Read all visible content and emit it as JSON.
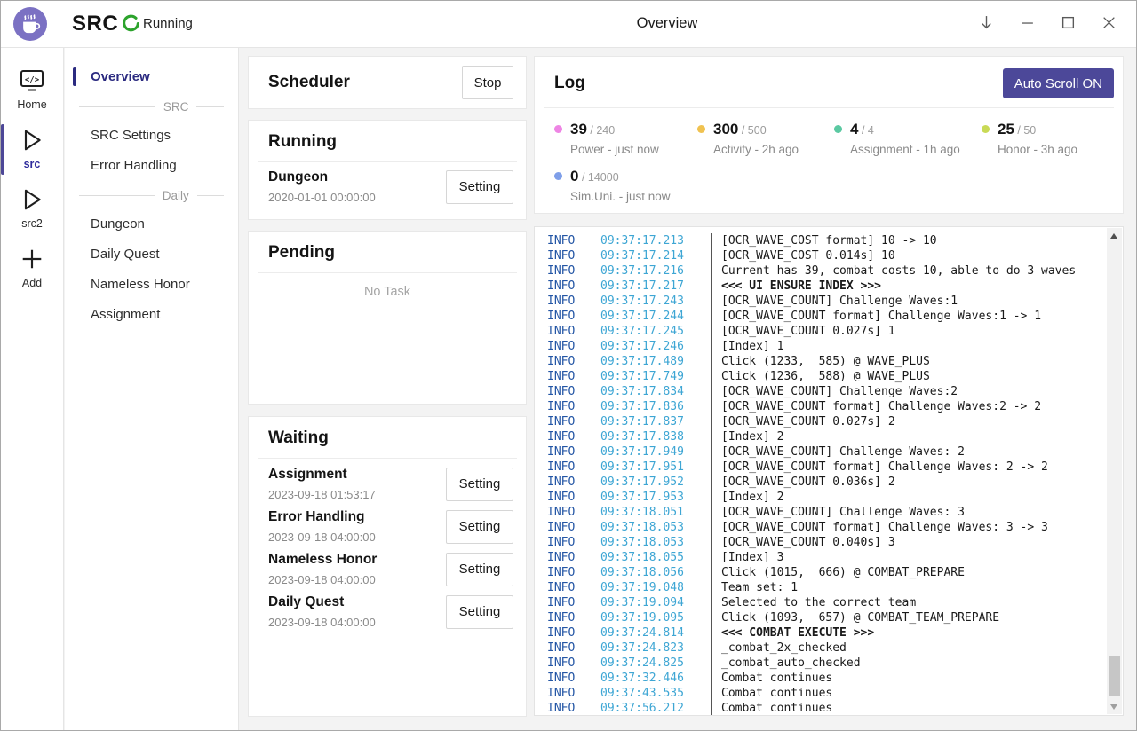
{
  "titlebar": {
    "app_name": "SRC",
    "status": "Running",
    "status_icon": "spinner-icon",
    "page_title": "Overview",
    "window_controls": [
      "arrow-down-icon",
      "minimize-icon",
      "maximize-icon",
      "close-icon"
    ],
    "logo_icon": "coffee-cup-logo"
  },
  "nav_rail": {
    "items": [
      {
        "label": "Home",
        "icon": "code-monitor-icon",
        "active": false
      },
      {
        "label": "src",
        "icon": "play-icon",
        "active": true
      },
      {
        "label": "src2",
        "icon": "play-icon",
        "active": false
      },
      {
        "label": "Add",
        "icon": "plus-icon",
        "active": false
      }
    ]
  },
  "sidebar": {
    "items": [
      {
        "type": "item",
        "label": "Overview",
        "active": true
      },
      {
        "type": "divider",
        "label": "SRC"
      },
      {
        "type": "item",
        "label": "SRC Settings",
        "active": false
      },
      {
        "type": "item",
        "label": "Error Handling",
        "active": false
      },
      {
        "type": "divider",
        "label": "Daily"
      },
      {
        "type": "item",
        "label": "Dungeon",
        "active": false
      },
      {
        "type": "item",
        "label": "Daily Quest",
        "active": false
      },
      {
        "type": "item",
        "label": "Nameless Honor",
        "active": false
      },
      {
        "type": "item",
        "label": "Assignment",
        "active": false
      }
    ]
  },
  "scheduler": {
    "title": "Scheduler",
    "stop_label": "Stop"
  },
  "running": {
    "title": "Running",
    "task": {
      "name": "Dungeon",
      "time": "2020-01-01 00:00:00",
      "setting_label": "Setting"
    }
  },
  "pending": {
    "title": "Pending",
    "empty_label": "No Task"
  },
  "waiting": {
    "title": "Waiting",
    "tasks": [
      {
        "name": "Assignment",
        "time": "2023-09-18 01:53:17",
        "setting_label": "Setting"
      },
      {
        "name": "Error Handling",
        "time": "2023-09-18 04:00:00",
        "setting_label": "Setting"
      },
      {
        "name": "Nameless Honor",
        "time": "2023-09-18 04:00:00",
        "setting_label": "Setting"
      },
      {
        "name": "Daily Quest",
        "time": "2023-09-18 04:00:00",
        "setting_label": "Setting"
      }
    ]
  },
  "log_panel": {
    "title": "Log",
    "autoscroll_label": "Auto Scroll ON",
    "autoscroll_color": "#4c4899",
    "stats": [
      {
        "value": "39",
        "total": "/ 240",
        "label": "Power - just now",
        "color": "#ee85e4"
      },
      {
        "value": "300",
        "total": "/ 500",
        "label": "Activity - 2h ago",
        "color": "#f0c250"
      },
      {
        "value": "4",
        "total": "/ 4",
        "label": "Assignment - 1h ago",
        "color": "#5bc9a2"
      },
      {
        "value": "25",
        "total": "/ 50",
        "label": "Honor - 3h ago",
        "color": "#c9da56"
      },
      {
        "value": "0",
        "total": "/ 14000",
        "label": "Sim.Uni. - just now",
        "color": "#7f9fe9"
      }
    ],
    "lines": [
      {
        "level": "INFO",
        "time": "09:37:17.213",
        "msg": "[OCR_WAVE_COST format] 10 -> 10"
      },
      {
        "level": "INFO",
        "time": "09:37:17.214",
        "msg": "[OCR_WAVE_COST 0.014s] 10"
      },
      {
        "level": "INFO",
        "time": "09:37:17.216",
        "msg": "Current has 39, combat costs 10, able to do 3 waves"
      },
      {
        "level": "INFO",
        "time": "09:37:17.217",
        "msg": "<<< UI ENSURE INDEX >>>",
        "bold": true
      },
      {
        "level": "INFO",
        "time": "09:37:17.243",
        "msg": "[OCR_WAVE_COUNT] Challenge Waves:1"
      },
      {
        "level": "INFO",
        "time": "09:37:17.244",
        "msg": "[OCR_WAVE_COUNT format] Challenge Waves:1 -> 1"
      },
      {
        "level": "INFO",
        "time": "09:37:17.245",
        "msg": "[OCR_WAVE_COUNT 0.027s] 1"
      },
      {
        "level": "INFO",
        "time": "09:37:17.246",
        "msg": "[Index] 1"
      },
      {
        "level": "INFO",
        "time": "09:37:17.489",
        "msg": "Click (1233,  585) @ WAVE_PLUS"
      },
      {
        "level": "INFO",
        "time": "09:37:17.749",
        "msg": "Click (1236,  588) @ WAVE_PLUS"
      },
      {
        "level": "INFO",
        "time": "09:37:17.834",
        "msg": "[OCR_WAVE_COUNT] Challenge Waves:2"
      },
      {
        "level": "INFO",
        "time": "09:37:17.836",
        "msg": "[OCR_WAVE_COUNT format] Challenge Waves:2 -> 2"
      },
      {
        "level": "INFO",
        "time": "09:37:17.837",
        "msg": "[OCR_WAVE_COUNT 0.027s] 2"
      },
      {
        "level": "INFO",
        "time": "09:37:17.838",
        "msg": "[Index] 2"
      },
      {
        "level": "INFO",
        "time": "09:37:17.949",
        "msg": "[OCR_WAVE_COUNT] Challenge Waves: 2"
      },
      {
        "level": "INFO",
        "time": "09:37:17.951",
        "msg": "[OCR_WAVE_COUNT format] Challenge Waves: 2 -> 2"
      },
      {
        "level": "INFO",
        "time": "09:37:17.952",
        "msg": "[OCR_WAVE_COUNT 0.036s] 2"
      },
      {
        "level": "INFO",
        "time": "09:37:17.953",
        "msg": "[Index] 2"
      },
      {
        "level": "INFO",
        "time": "09:37:18.051",
        "msg": "[OCR_WAVE_COUNT] Challenge Waves: 3"
      },
      {
        "level": "INFO",
        "time": "09:37:18.053",
        "msg": "[OCR_WAVE_COUNT format] Challenge Waves: 3 -> 3"
      },
      {
        "level": "INFO",
        "time": "09:37:18.053",
        "msg": "[OCR_WAVE_COUNT 0.040s] 3"
      },
      {
        "level": "INFO",
        "time": "09:37:18.055",
        "msg": "[Index] 3"
      },
      {
        "level": "INFO",
        "time": "09:37:18.056",
        "msg": "Click (1015,  666) @ COMBAT_PREPARE"
      },
      {
        "level": "INFO",
        "time": "09:37:19.048",
        "msg": "Team set: 1"
      },
      {
        "level": "INFO",
        "time": "09:37:19.094",
        "msg": "Selected to the correct team"
      },
      {
        "level": "INFO",
        "time": "09:37:19.095",
        "msg": "Click (1093,  657) @ COMBAT_TEAM_PREPARE"
      },
      {
        "level": "INFO",
        "time": "09:37:24.814",
        "msg": "<<< COMBAT EXECUTE >>>",
        "bold": true
      },
      {
        "level": "INFO",
        "time": "09:37:24.823",
        "msg": "_combat_2x_checked"
      },
      {
        "level": "INFO",
        "time": "09:37:24.825",
        "msg": "_combat_auto_checked"
      },
      {
        "level": "INFO",
        "time": "09:37:32.446",
        "msg": "Combat continues"
      },
      {
        "level": "INFO",
        "time": "09:37:43.535",
        "msg": "Combat continues"
      },
      {
        "level": "INFO",
        "time": "09:37:56.212",
        "msg": "Combat continues"
      }
    ]
  },
  "colors": {
    "accent": "#4c4899",
    "active_text": "#2b2a80",
    "log_level": "#2456a5",
    "log_time": "#3ea6d4",
    "spinner_green": "#2ca32c",
    "logo_purple": "#7b71c3"
  }
}
